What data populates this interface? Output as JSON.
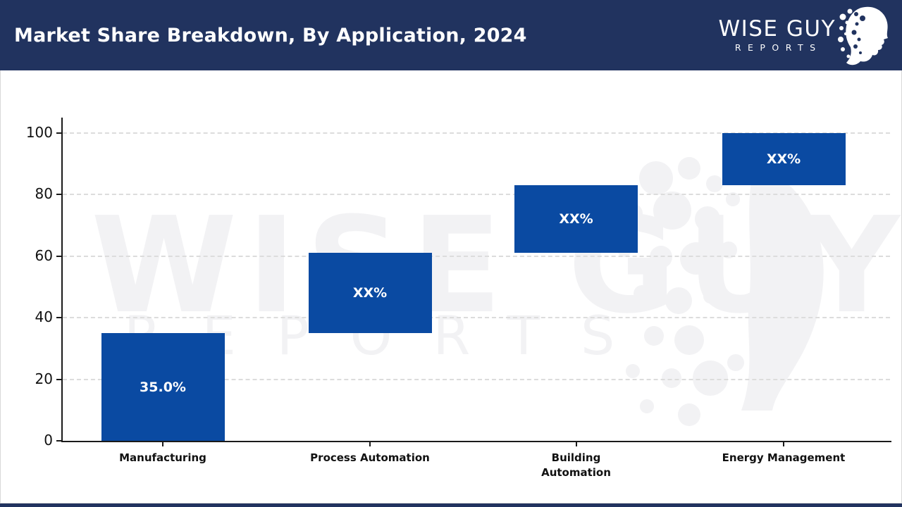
{
  "header": {
    "title": "Market Share Breakdown, By Application, 2024",
    "logo": {
      "line1": "WISE GUY",
      "line2": "REPORTS"
    }
  },
  "watermark": {
    "line1": "WISE GUY",
    "line2": "REPORTS"
  },
  "chart_data": {
    "type": "bar",
    "subtype": "waterfall",
    "title": "Market Share Breakdown, By Application, 2024",
    "categories": [
      "Manufacturing",
      "Process Automation",
      "Building\nAutomation",
      "Energy Management"
    ],
    "segments": [
      {
        "category": "Manufacturing",
        "start": 0,
        "end": 35,
        "value_estimate": 35,
        "label": "35.0%"
      },
      {
        "category": "Process Automation",
        "start": 35,
        "end": 61,
        "value_estimate": 26,
        "label": "XX%"
      },
      {
        "category": "Building Automation",
        "start": 61,
        "end": 83,
        "value_estimate": 22,
        "label": "XX%"
      },
      {
        "category": "Energy Management",
        "start": 83,
        "end": 100,
        "value_estimate": 17,
        "label": "XX%"
      }
    ],
    "yticks": [
      0,
      20,
      40,
      60,
      80,
      100
    ],
    "ylim": [
      0,
      105
    ],
    "xlabel": "",
    "ylabel": "",
    "grid": "dashed-horizontal",
    "legend": "none"
  },
  "colors": {
    "header_bg": "#21335F",
    "footer_bg": "#21335F",
    "bar": "#0A4AA2",
    "bar_label": "#FFFFFF",
    "grid": "#DCDCDC",
    "axis": "#1A1A1A",
    "watermark": "#F2F2F4",
    "panel_border": "#D9D9D9"
  }
}
